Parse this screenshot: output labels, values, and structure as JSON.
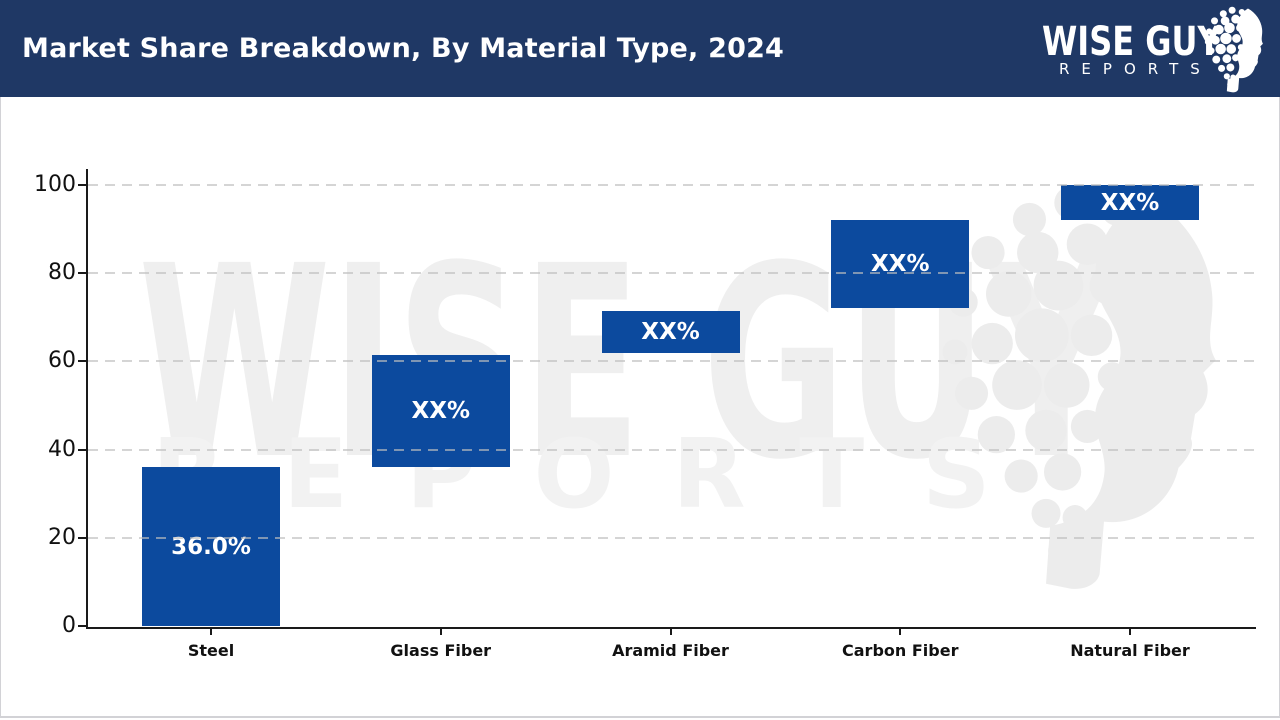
{
  "header": {
    "title": "Market Share Breakdown, By Material Type, 2024",
    "logo": {
      "line1": "WISE GUY",
      "line2": "REPORTS"
    }
  },
  "watermark": {
    "line1": "WISE GUY",
    "line2": "REPORTS"
  },
  "colors": {
    "header_bg": "#1f3865",
    "bar": "#0c4a9e",
    "bar_value_label": "#ffffff",
    "axis": "#1a1a1a",
    "gridline": "#d6d6d6",
    "watermark": "#efefef",
    "title_text": "#ffffff"
  },
  "chart_data": {
    "type": "bar",
    "subtype": "waterfall",
    "title": "Market Share Breakdown, By Material Type, 2024",
    "categories": [
      "Steel",
      "Glass Fiber",
      "Aramid Fiber",
      "Carbon Fiber",
      "Natural Fiber"
    ],
    "segments": [
      {
        "category": "Steel",
        "start": 0,
        "end": 36,
        "value": 36.0,
        "label": "36.0%"
      },
      {
        "category": "Glass Fiber",
        "start": 36,
        "end": 61.5,
        "value": 25.5,
        "label": "XX%"
      },
      {
        "category": "Aramid Fiber",
        "start": 62,
        "end": 71.5,
        "value": 9.5,
        "label": "XX%"
      },
      {
        "category": "Carbon Fiber",
        "start": 72,
        "end": 92,
        "value": 20.0,
        "label": "XX%"
      },
      {
        "category": "Natural Fiber",
        "start": 92,
        "end": 100,
        "value": 8.0,
        "label": "XX%"
      }
    ],
    "yticks": [
      0,
      20,
      40,
      60,
      80,
      100
    ],
    "ylim": [
      0,
      103.5
    ],
    "xlabel": "",
    "ylabel": "",
    "grid": "horizontal-dashed",
    "legend": "none",
    "bar_color": "#0c4a9e",
    "value_label_color": "#ffffff"
  }
}
